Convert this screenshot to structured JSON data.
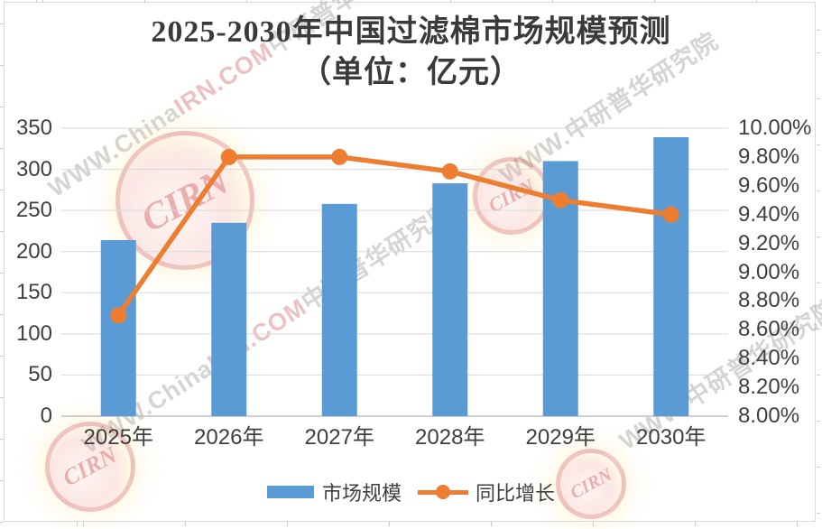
{
  "title": {
    "line1": "2025-2030年中国过滤棉市场规模预测",
    "line2": "（单位：亿元）"
  },
  "colors": {
    "bar": "#5B9BD5",
    "line": "#ED7D31",
    "grid": "#D9D9D9",
    "zero_line": "#BFBFBF",
    "axis_text": "#3F3F3F",
    "title_text": "#3A3A3A"
  },
  "chart_data": {
    "type": "bar+line",
    "title": "2025-2030年中国过滤棉市场规模预测（单位：亿元）",
    "categories": [
      "2025年",
      "2026年",
      "2027年",
      "2028年",
      "2029年",
      "2030年"
    ],
    "series": [
      {
        "name": "市场规模",
        "type": "bar",
        "axis": "left",
        "unit": "亿元",
        "values": [
          214,
          235,
          258,
          283,
          310,
          339
        ]
      },
      {
        "name": "同比增长",
        "type": "line",
        "axis": "right",
        "unit": "%",
        "values": [
          8.7,
          9.8,
          9.8,
          9.7,
          9.5,
          9.4
        ]
      }
    ],
    "left_axis": {
      "min": 0,
      "max": 350,
      "step": 50,
      "tick_labels": [
        "350",
        "300",
        "250",
        "200",
        "150",
        "100",
        "50",
        "0"
      ]
    },
    "right_axis": {
      "min": 8.0,
      "max": 10.0,
      "step": 0.2,
      "tick_labels": [
        "10.00%",
        "9.80%",
        "9.60%",
        "9.40%",
        "9.20%",
        "9.00%",
        "8.80%",
        "8.60%",
        "8.40%",
        "8.20%",
        "8.00%"
      ]
    },
    "grid": "horizontal",
    "legend_position": "bottom"
  },
  "legend": [
    {
      "label": "市场规模",
      "swatch": "bar"
    },
    {
      "label": "同比增长",
      "swatch": "line-with-marker"
    }
  ],
  "watermark": {
    "url_gray_part": "WWW.China",
    "url_red_part": "IRN.COM",
    "www_prefix": "WWW.",
    "cn_text": "中研普华研究院",
    "logo_text": "CIRN"
  }
}
